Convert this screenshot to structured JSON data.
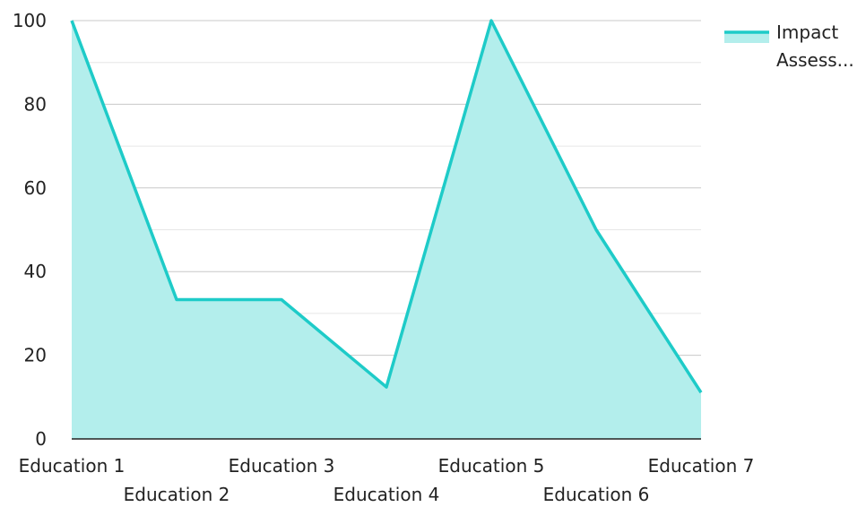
{
  "chart_data": {
    "type": "area",
    "categories": [
      "Education 1",
      "Education 2",
      "Education 3",
      "Education 4",
      "Education 5",
      "Education 6",
      "Education 7"
    ],
    "series": [
      {
        "name": "Impact Assess...",
        "legend_lines": [
          "Impact",
          "Assess..."
        ],
        "values": [
          100,
          33.3,
          33.3,
          12.4,
          100,
          50,
          11.1
        ],
        "line_color": "#1ECBC8",
        "fill_color": "#B3EEEC"
      }
    ],
    "yticks": [
      0,
      20,
      40,
      60,
      80,
      100
    ],
    "ylim": [
      0,
      100
    ],
    "grid": true,
    "grid_color": "#C8C8C8",
    "minor_grid_color": "#E6E6E6",
    "legend_position": "top-right"
  }
}
